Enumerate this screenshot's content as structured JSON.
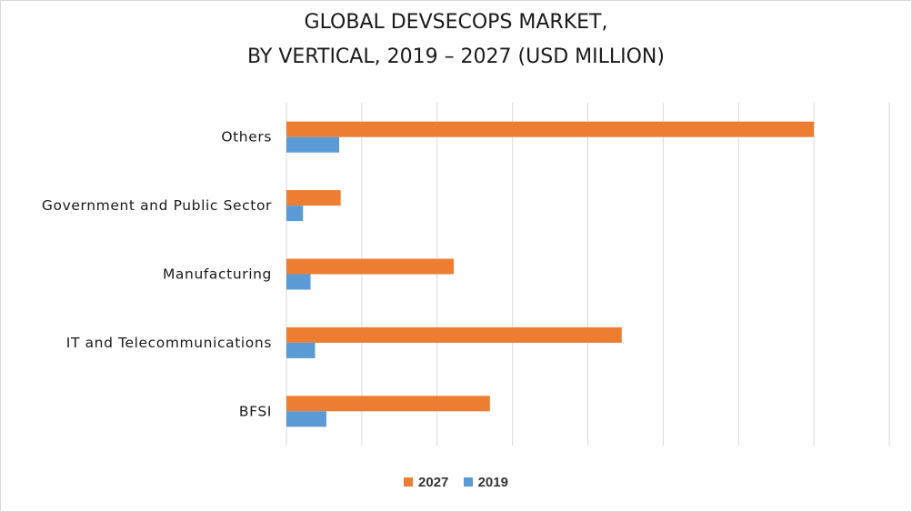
{
  "chart_data": {
    "type": "bar",
    "orientation": "horizontal",
    "title": [
      "GLOBAL DEVSECOPS MARKET,",
      "BY VERTICAL, 2019 – 2027 (USD MILLION)"
    ],
    "categories": [
      "Others",
      "Government and Public Sector",
      "Manufacturing",
      "IT and Telecommunications",
      "BFSI"
    ],
    "series": [
      {
        "name": "2027",
        "color": "#ed7d31",
        "values": [
          7,
          0.72,
          2.22,
          4.45,
          2.7
        ]
      },
      {
        "name": "2019",
        "color": "#5b9bd5",
        "values": [
          0.7,
          0.22,
          0.32,
          0.38,
          0.53
        ]
      }
    ],
    "xlim": [
      0,
      8
    ],
    "grid": true,
    "value_axis_labels": false,
    "legend_position": "bottom"
  }
}
